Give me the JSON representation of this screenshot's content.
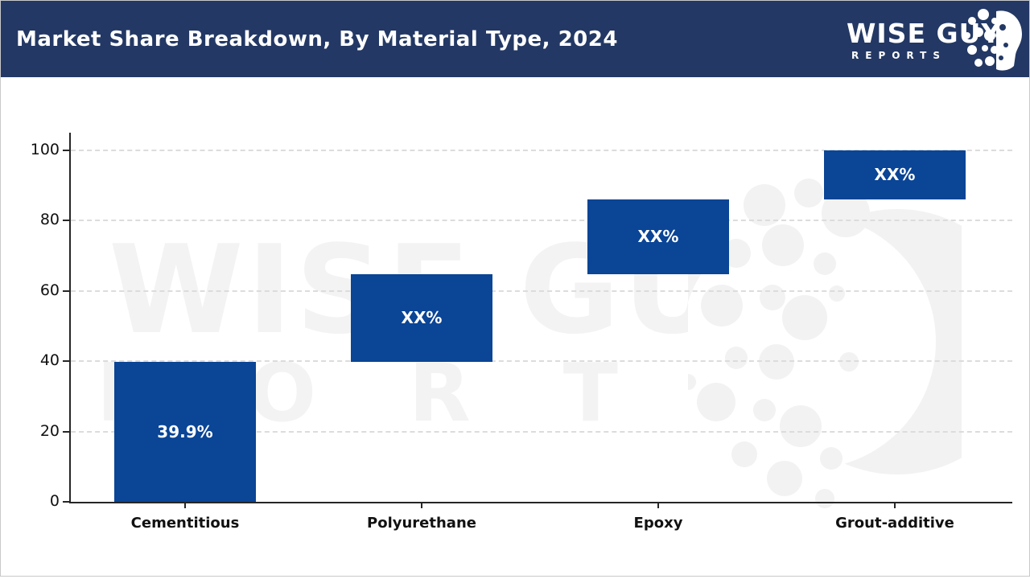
{
  "header": {
    "title": "Market Share Breakdown, By Material Type, 2024",
    "logo": {
      "wordmark": "WISE GUY",
      "subtitle": "REPORTS"
    }
  },
  "watermark": {
    "line1": "WISE GUY",
    "line2": "P O R T S"
  },
  "colors": {
    "header_bg": "#233864",
    "bar_fill": "#0a4596",
    "bar_label_text": "#ffffff",
    "axis": "#262626",
    "gridline": "#dcdcdc",
    "watermark": "#f3f3f3"
  },
  "chart_data": {
    "type": "bar",
    "variant": "waterfall",
    "title": "Market Share Breakdown, By Material Type, 2024",
    "xlabel": "",
    "ylabel": "",
    "legend": "none",
    "grid": "horizontal-dashed",
    "ylim": [
      0,
      105
    ],
    "yticks": [
      0,
      20,
      40,
      60,
      80,
      100
    ],
    "categories": [
      "Cementitious",
      "Polyurethane",
      "Epoxy",
      "Grout-additive"
    ],
    "segments": [
      {
        "category": "Cementitious",
        "start": 0,
        "end": 39.9,
        "value": 39.9,
        "label": "39.9%"
      },
      {
        "category": "Polyurethane",
        "start": 39.9,
        "end": 64.8,
        "value": 24.9,
        "label": "XX%"
      },
      {
        "category": "Epoxy",
        "start": 64.8,
        "end": 86.1,
        "value": 21.3,
        "label": "XX%"
      },
      {
        "category": "Grout-additive",
        "start": 86.1,
        "end": 100,
        "value": 13.9,
        "label": "XX%"
      }
    ]
  }
}
